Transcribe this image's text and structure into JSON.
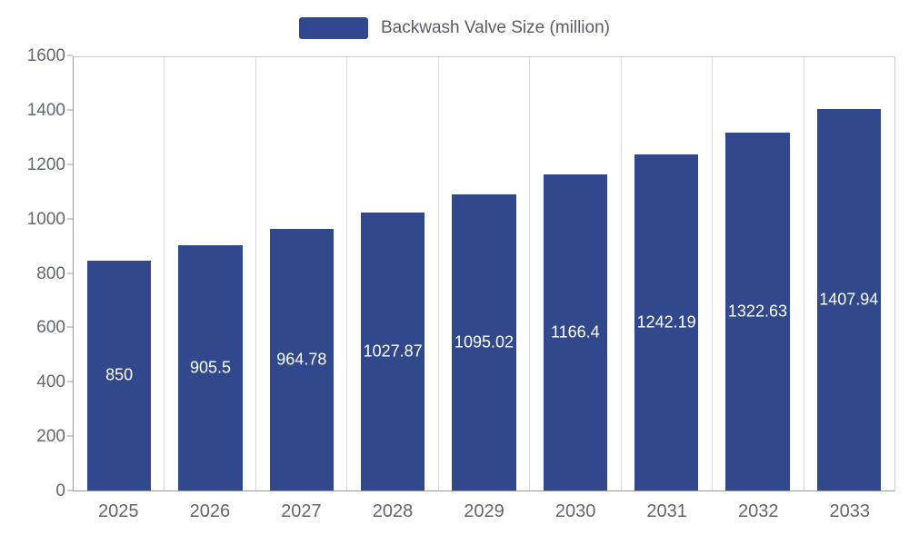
{
  "chart_data": {
    "type": "bar",
    "title": "Backwash Valve Size (million)",
    "legend": [
      "Backwash Valve Size (million)"
    ],
    "legend_position": "top",
    "categories": [
      "2025",
      "2026",
      "2027",
      "2028",
      "2029",
      "2030",
      "2031",
      "2032",
      "2033"
    ],
    "series": [
      {
        "name": "Backwash Valve Size (million)",
        "values": [
          850,
          905.5,
          964.78,
          1027.87,
          1095.02,
          1166.4,
          1242.19,
          1322.63,
          1407.94
        ],
        "data_labels": [
          "850",
          "905.5",
          "964.78",
          "1027.87",
          "1095.02",
          "1166.4",
          "1242.19",
          "1322.63",
          "1407.94"
        ]
      }
    ],
    "xlabel": "",
    "ylabel": "",
    "ylim": [
      0,
      1600
    ],
    "ytick_step": 200,
    "yticks": [
      "0",
      "200",
      "400",
      "600",
      "800",
      "1000",
      "1200",
      "1400",
      "1600"
    ],
    "grid": true,
    "colors": {
      "bar_fill": "#31498c",
      "value_label_text": "#ffffff",
      "axis_text": "#63666d",
      "legend_text": "#5a5c63",
      "gridline": "#dddddd",
      "axis_line": "#999999",
      "background": "#ffffff"
    }
  }
}
